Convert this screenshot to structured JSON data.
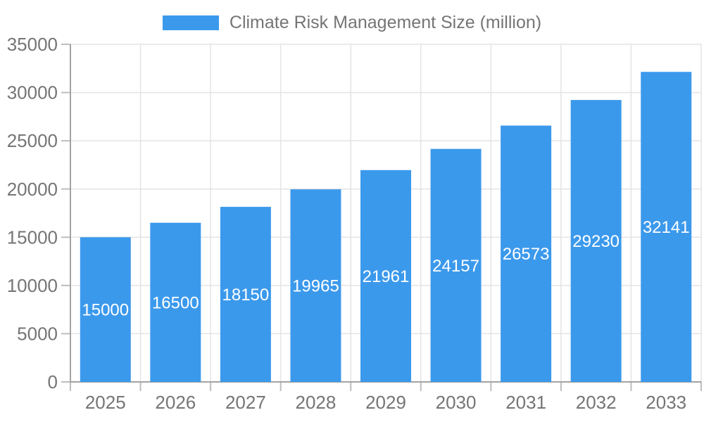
{
  "chart_data": {
    "type": "bar",
    "title": "Climate Risk Management Size (million)",
    "legend": [
      "Climate Risk Management Size (million)"
    ],
    "legend_position": "top",
    "categories": [
      "2025",
      "2026",
      "2027",
      "2028",
      "2029",
      "2030",
      "2031",
      "2032",
      "2033"
    ],
    "values": [
      15000,
      16500,
      18150,
      19965,
      21961,
      24157,
      26573,
      29230,
      32141
    ],
    "bar_labels": [
      "15000",
      "16500",
      "18150",
      "19965",
      "21961",
      "24157",
      "26573",
      "29230",
      "32141"
    ],
    "bar_label_placement": "inside-middle",
    "xlabel": "",
    "ylabel": "",
    "ylim": [
      0,
      35000
    ],
    "ytick_step": 5000,
    "ytick_labels": [
      "0",
      "5000",
      "10000",
      "15000",
      "20000",
      "25000",
      "30000",
      "35000"
    ],
    "grid": true
  },
  "colors": {
    "bar": "#3b99ec",
    "grid": "#e4e4e4",
    "axis": "#a3a3a3",
    "tick": "#bdbdbd",
    "axis_text": "#757575",
    "bar_label_text": "#ffffff",
    "background": "#ffffff"
  }
}
